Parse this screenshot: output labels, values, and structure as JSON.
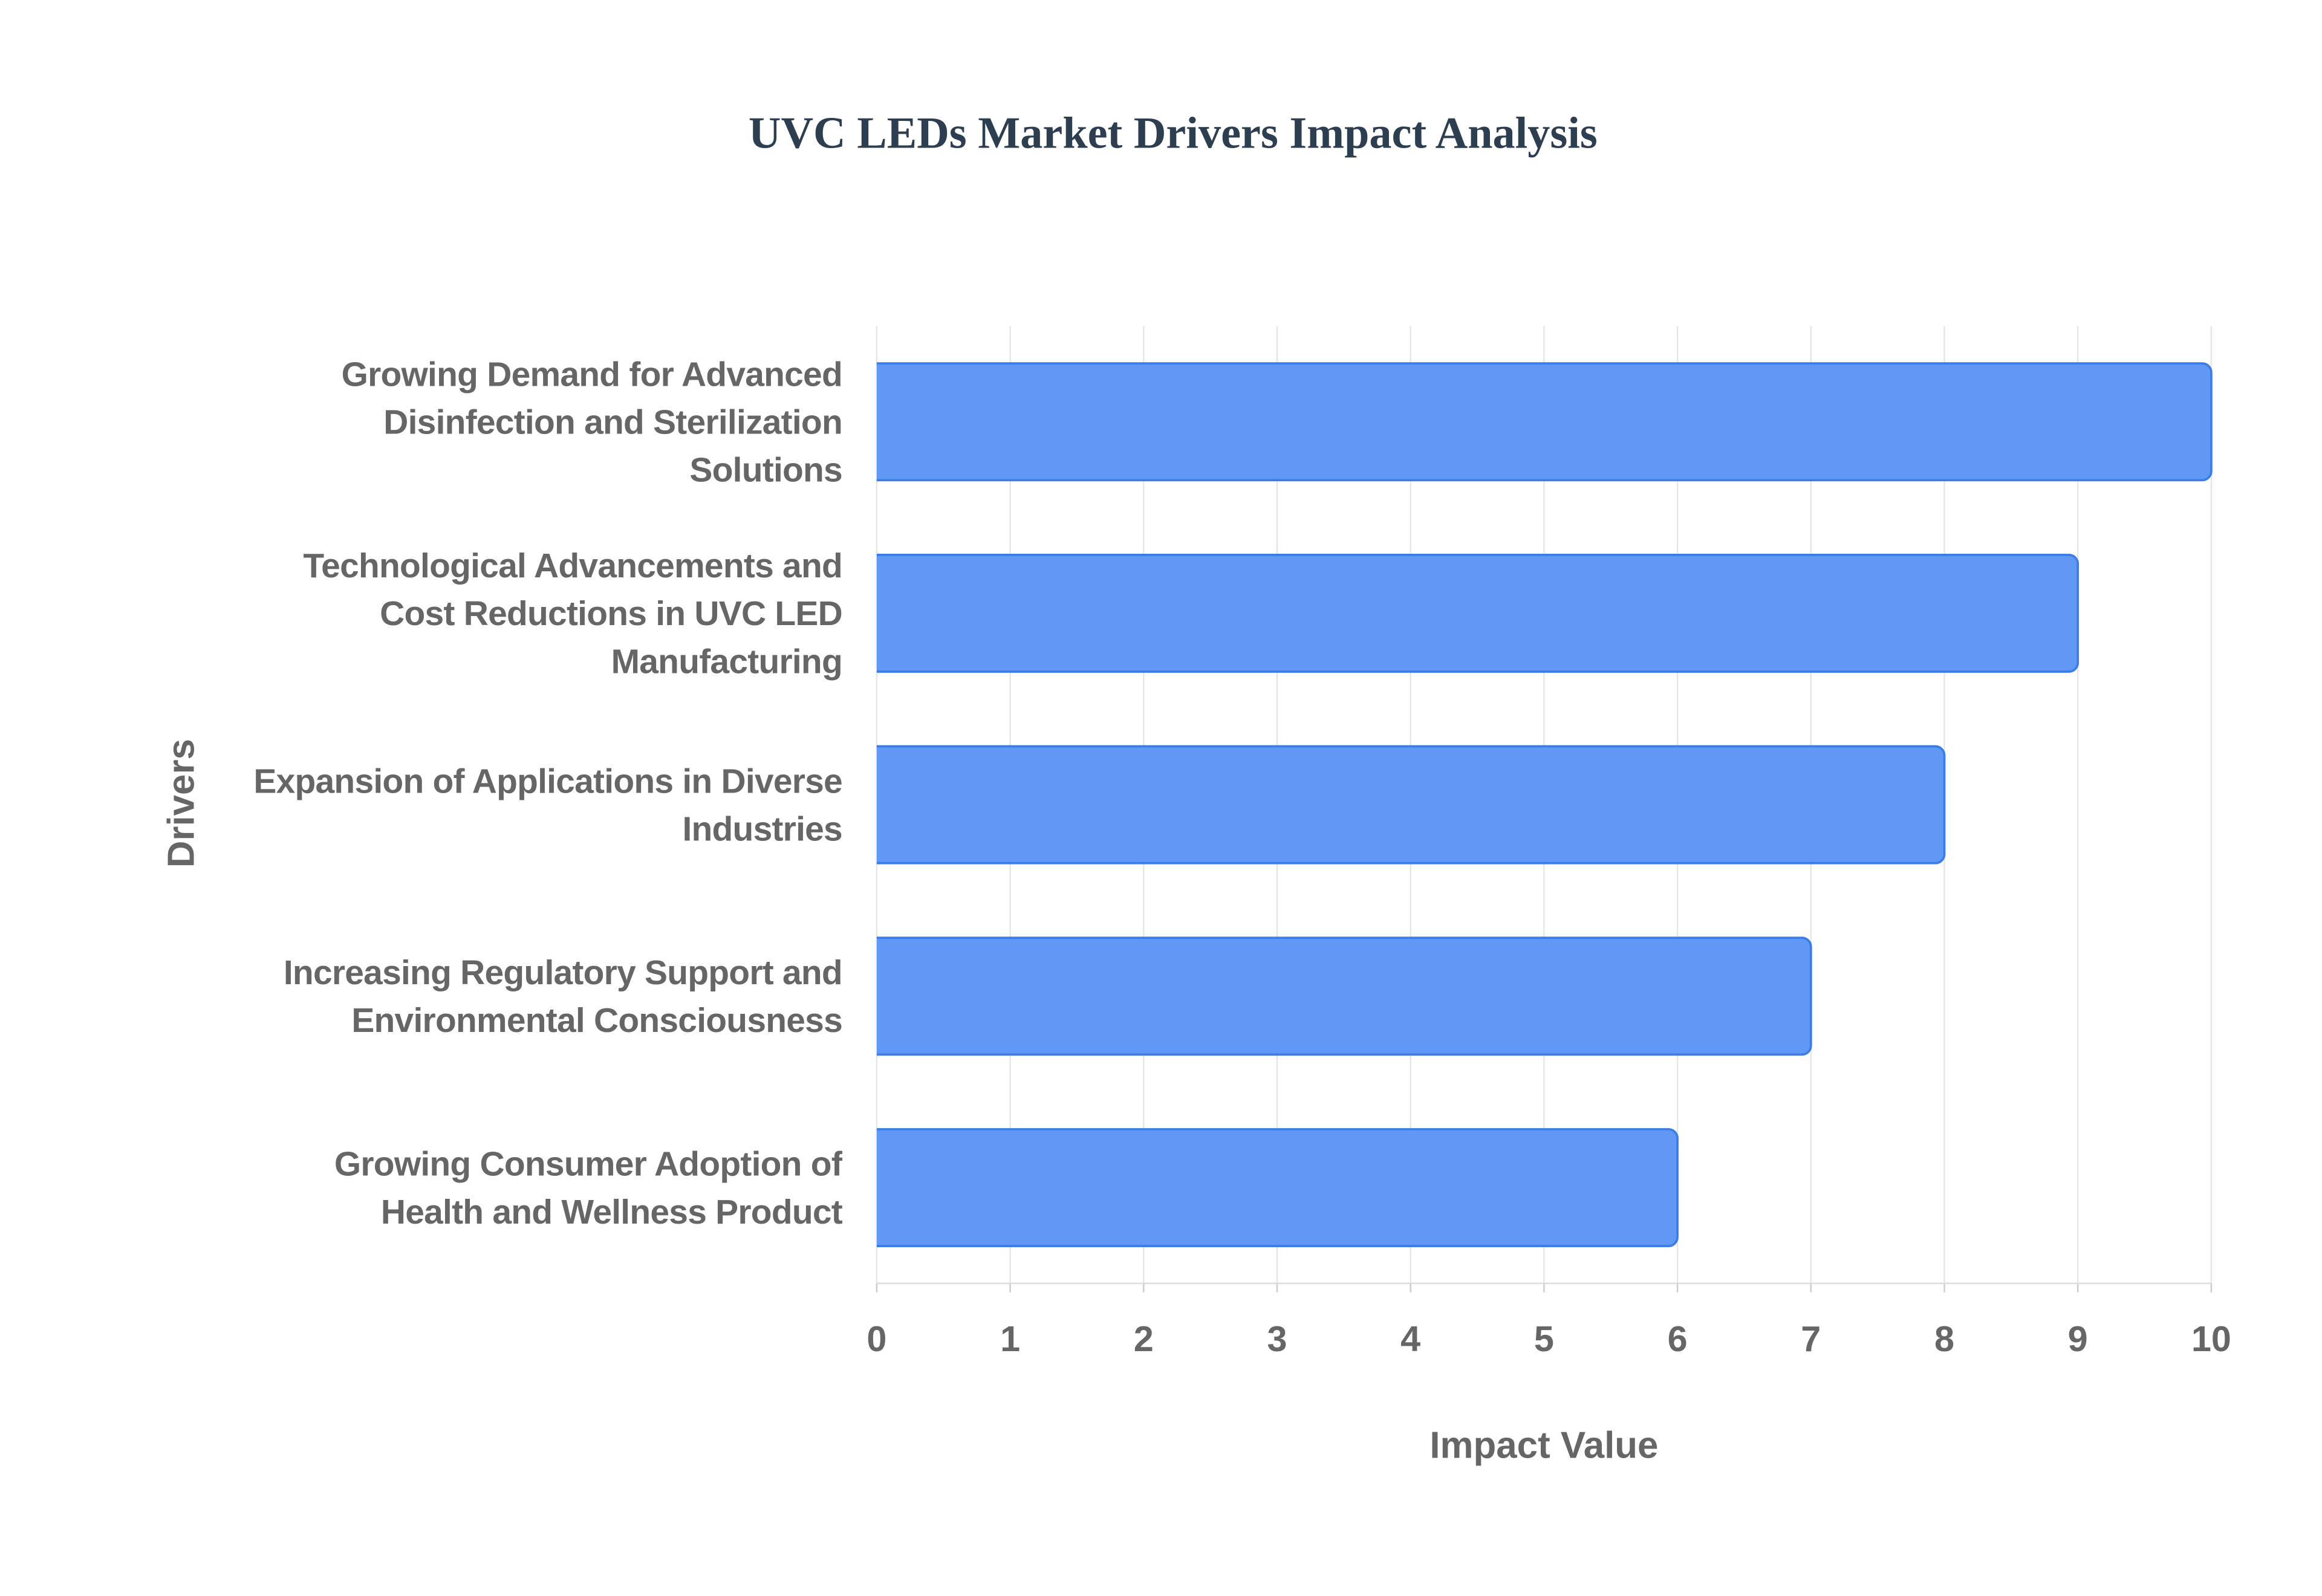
{
  "chart_data": {
    "type": "bar",
    "orientation": "horizontal",
    "title": "UVC LEDs Market Drivers Impact Analysis",
    "x_axis_label": "Impact Value",
    "y_axis_label": "Drivers",
    "categories": [
      "Growing Demand for Advanced Disinfection and Sterilization Solutions",
      "Technological Advancements and Cost Reductions in UVC LED Manufacturing",
      "Expansion of Applications in Diverse Industries",
      "Increasing Regulatory Support and Environmental Consciousness",
      "Growing Consumer Adoption of Health and Wellness Product"
    ],
    "values": [
      10,
      9,
      8,
      7,
      6
    ],
    "color": "#6198f5",
    "xlim": [
      0,
      10
    ],
    "xticks": [
      0,
      1,
      2,
      3,
      4,
      5,
      6,
      7,
      8,
      9,
      10
    ],
    "grid": true
  }
}
